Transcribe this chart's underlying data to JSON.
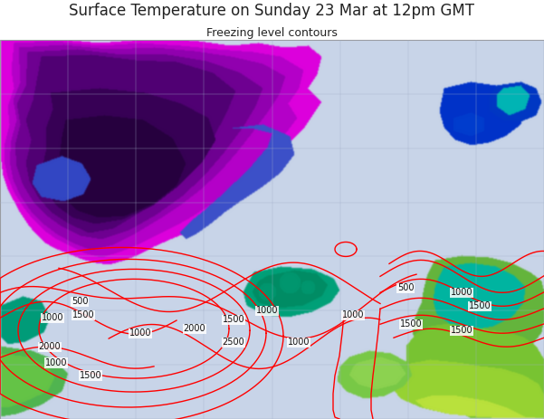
{
  "title": "Surface Temperature on Sunday 23 Mar at 12pm GMT",
  "subtitle": "Freezing level contours",
  "title_fontsize": 12,
  "subtitle_fontsize": 9,
  "title_color": "#222222",
  "ocean_color": "#c8d4e8",
  "fig_width": 6.01,
  "fig_height": 4.63,
  "dpi": 100,
  "contour_color": "#ff0000",
  "contour_lw": 1.0,
  "label_fontsize": 7
}
